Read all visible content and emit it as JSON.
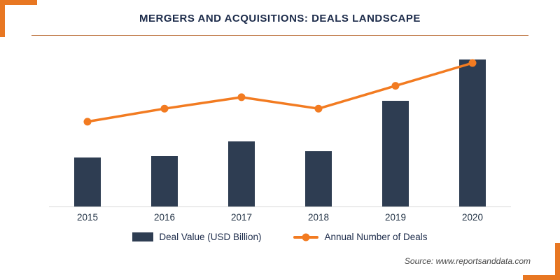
{
  "title": "MERGERS AND ACQUISITIONS: DEALS LANDSCAPE",
  "source": "Source: www.reportsanddata.com",
  "legend": {
    "bar_label": "Deal Value (USD Billion)",
    "line_label": "Annual Number of Deals"
  },
  "colors": {
    "bar": "#2e3d52",
    "line": "#f27b21",
    "accent": "#e87722",
    "title": "#1c2b4a"
  },
  "chart_data": {
    "type": "combo",
    "categories": [
      "2015",
      "2016",
      "2017",
      "2018",
      "2019",
      "2020"
    ],
    "series": [
      {
        "name": "Deal Value (USD Billion)",
        "kind": "bar",
        "values": [
          30,
          31,
          40,
          34,
          65,
          90
        ]
      },
      {
        "name": "Annual Number of Deals",
        "kind": "line",
        "values": [
          52,
          60,
          67,
          60,
          74,
          88
        ]
      }
    ],
    "title": "MERGERS AND ACQUISITIONS: DEALS LANDSCAPE",
    "xlabel": "",
    "ylabel": "",
    "ylim": [
      0,
      100
    ],
    "grid": false,
    "legend_position": "bottom",
    "units": "relative (no numeric axis labels shown; values estimated as % of plot height)"
  }
}
